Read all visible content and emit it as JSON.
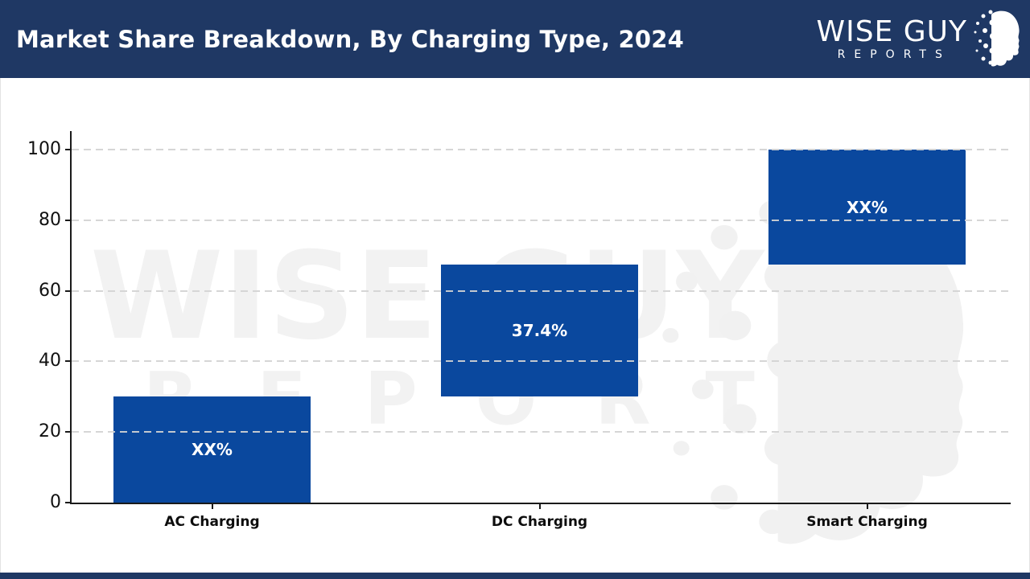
{
  "header": {
    "title": "Market Share Breakdown, By Charging Type, 2024"
  },
  "brand": {
    "line1": "WISE GUY",
    "line2": "REPORTS"
  },
  "watermark": {
    "line1": "WISE GUY",
    "line2": "REPORTS"
  },
  "colors": {
    "header_bg": "#1f3864",
    "footer_bg": "#1f3864",
    "bar": "#0a489e",
    "bar_label": "#ffffff",
    "grid": "#d3d3d3",
    "axis": "#1a1a1a",
    "watermark": "#f2f2f2"
  },
  "chart_data": {
    "type": "bar",
    "variant": "waterfall",
    "title": "Market Share Breakdown, By Charging Type, 2024",
    "categories": [
      "AC Charging",
      "DC Charging",
      "Smart Charging"
    ],
    "segments": [
      {
        "category": "AC Charging",
        "start": 0,
        "end": 30,
        "label": "XX%"
      },
      {
        "category": "DC Charging",
        "start": 30,
        "end": 67.4,
        "label": "37.4%"
      },
      {
        "category": "Smart Charging",
        "start": 67.4,
        "end": 100,
        "label": "XX%"
      }
    ],
    "values": [
      30,
      37.4,
      32.6
    ],
    "yticks": [
      0,
      20,
      40,
      60,
      80,
      100
    ],
    "ylim": [
      0,
      105
    ],
    "grid": "horizontal-dashed",
    "legend": "none",
    "xlabel": "",
    "ylabel": ""
  }
}
